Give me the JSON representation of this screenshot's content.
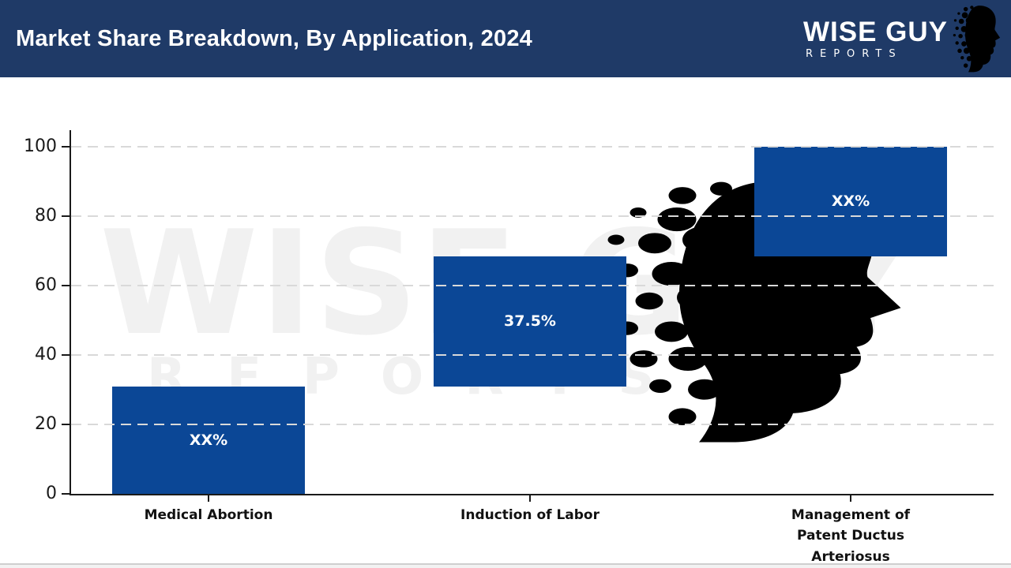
{
  "header": {
    "title": "Market Share Breakdown, By Application, 2024",
    "logo": {
      "line1": "WISE GUY",
      "line2": "REPORTS"
    }
  },
  "watermark": {
    "line1": "WISE GUY",
    "line2": "REPORTS"
  },
  "chart_data": {
    "type": "bar",
    "subtype": "floating-segments-waterfall",
    "title": "Market Share Breakdown, By Application, 2024",
    "categories": [
      "Medical Abortion",
      "Induction of Labor",
      "Management of Patent Ductus Arteriosus"
    ],
    "segments": [
      {
        "start": 0,
        "end": 31,
        "display_label": "XX%"
      },
      {
        "start": 31,
        "end": 68.5,
        "display_label": "37.5%"
      },
      {
        "start": 68.5,
        "end": 100,
        "display_label": "XX%"
      }
    ],
    "yticks": [
      0,
      20,
      40,
      60,
      80,
      100
    ],
    "ylim": [
      0,
      105
    ],
    "xlabel": "",
    "ylabel": "",
    "grid": "horizontal-dashed",
    "legend": "none",
    "bar_color": "#0b4796",
    "label_color": "#ffffff"
  },
  "colors": {
    "header_bg": "#1f3a67",
    "bar": "#0b4796",
    "gridline": "#d9d9d9",
    "axis": "#1a1a1a",
    "watermark": "#f0f0f0",
    "footer_strip": "#f2f2f2"
  }
}
